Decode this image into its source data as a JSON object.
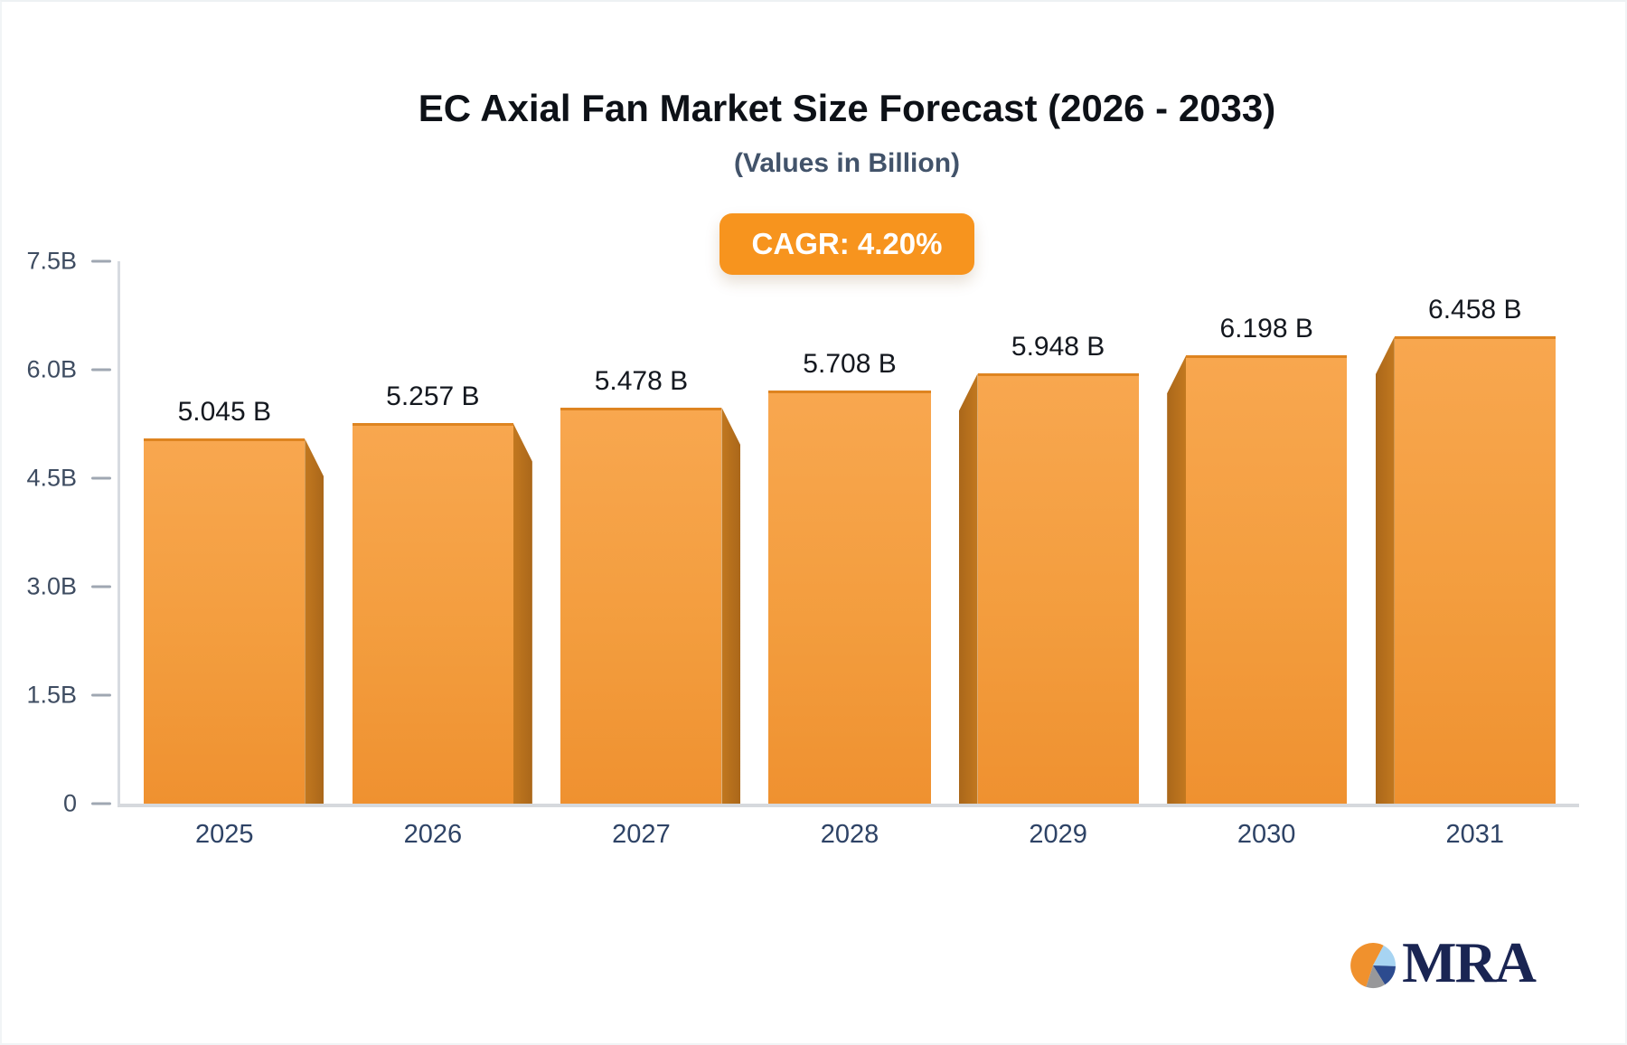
{
  "chart_data": {
    "type": "bar",
    "title": "EC Axial Fan Market Size Forecast (2026 - 2033)",
    "subtitle": "(Values in Billion)",
    "cagr_label": "CAGR: 4.20%",
    "categories": [
      "2025",
      "2026",
      "2027",
      "2028",
      "2029",
      "2030",
      "2031"
    ],
    "values": [
      5.045,
      5.257,
      5.478,
      5.708,
      5.948,
      6.198,
      6.458
    ],
    "value_labels": [
      "5.045 B",
      "5.257 B",
      "5.478 B",
      "5.708 B",
      "5.948 B",
      "6.198 B",
      "6.458 B"
    ],
    "bar_shade_side": [
      "right",
      "right",
      "right",
      "none",
      "left",
      "left",
      "left"
    ],
    "ylim": [
      0,
      7.5
    ],
    "ytick_values": [
      0,
      1.5,
      3.0,
      4.5,
      6.0,
      7.5
    ],
    "ytick_labels": [
      "0",
      "1.5B",
      "3.0B",
      "4.5B",
      "6.0B",
      "7.5B"
    ],
    "grid": "off",
    "legend": "none",
    "colors": {
      "bar_face_top": "#f8a74f",
      "bar_face_bottom": "#ef9130",
      "bar_side": "#b4701f",
      "badge": "#f7941e",
      "axis": "#d7dbe1",
      "tick_text": "#3e4c61",
      "year_text": "#2e4366",
      "value_text": "#14181f",
      "title_text": "#0d1117",
      "subtitle_text": "#42536a"
    }
  },
  "logo": {
    "text": "MRA",
    "pie_colors": {
      "orange": "#f0912d",
      "light_blue": "#a7d4f2",
      "dark_blue": "#2c4b8f",
      "gray": "#98989a"
    }
  }
}
